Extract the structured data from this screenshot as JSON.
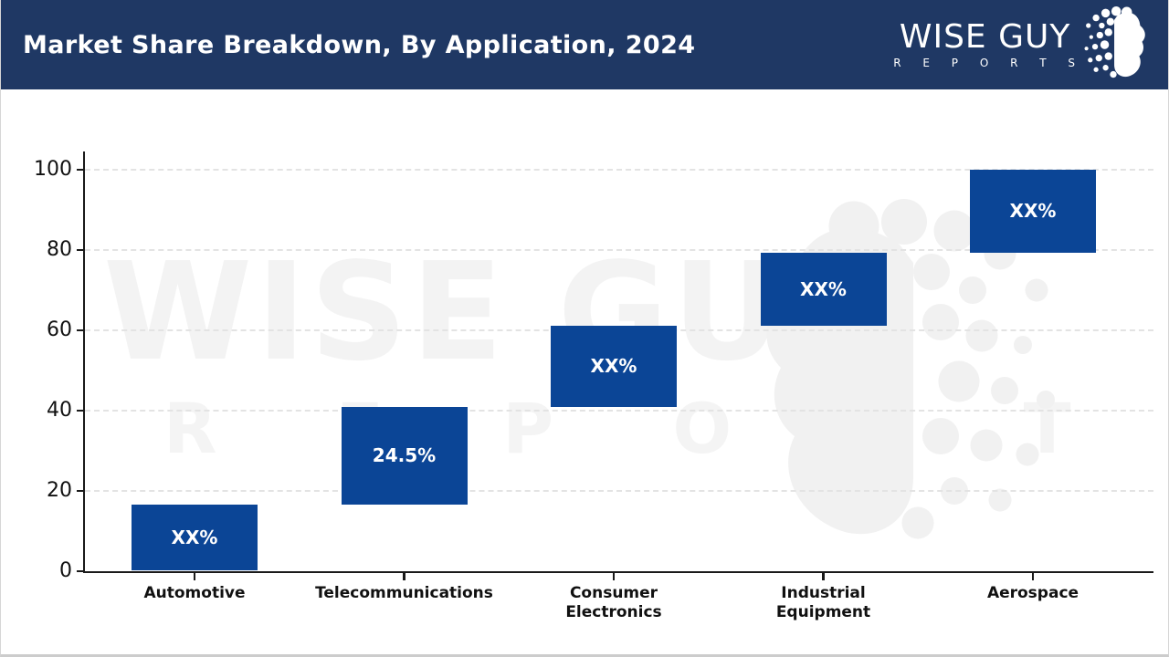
{
  "header": {
    "title": "Market Share Breakdown, By Application, 2024",
    "logo": {
      "line1": "WISE GUY",
      "line2": "R E P O R T S"
    }
  },
  "watermark": {
    "line1": "WISE GUY",
    "line2": "R E P O R T S"
  },
  "colors": {
    "header_bg": "#1f3864",
    "bar_blue": "#0b4596",
    "grid": "#e3e3e3",
    "spine": "#1a1a1a",
    "watermark": "#f3f3f3"
  },
  "chart_data": {
    "type": "bar",
    "subtype": "waterfall",
    "title": "Market Share Breakdown, By Application, 2024",
    "xlabel": "",
    "ylabel": "",
    "ylim": [
      0,
      105
    ],
    "yticks": [
      0,
      20,
      40,
      60,
      80,
      100
    ],
    "grid": "dashed horizontal",
    "legend": "none",
    "bar_color": "#0b4596",
    "categories": [
      "Automotive",
      "Telecommunications",
      "Consumer\nElectronics",
      "Industrial\nEquipment",
      "Aerospace"
    ],
    "segments": [
      {
        "category": "Automotive",
        "start": 0,
        "end": 16.4,
        "label": "XX%"
      },
      {
        "category": "Telecommunications",
        "start": 16.4,
        "end": 40.9,
        "label": "24.5%"
      },
      {
        "category": "Consumer\nElectronics",
        "start": 40.9,
        "end": 61.1,
        "label": "XX%"
      },
      {
        "category": "Industrial\nEquipment",
        "start": 61.1,
        "end": 79.2,
        "label": "XX%"
      },
      {
        "category": "Aerospace",
        "start": 79.2,
        "end": 100,
        "label": "XX%"
      }
    ]
  }
}
